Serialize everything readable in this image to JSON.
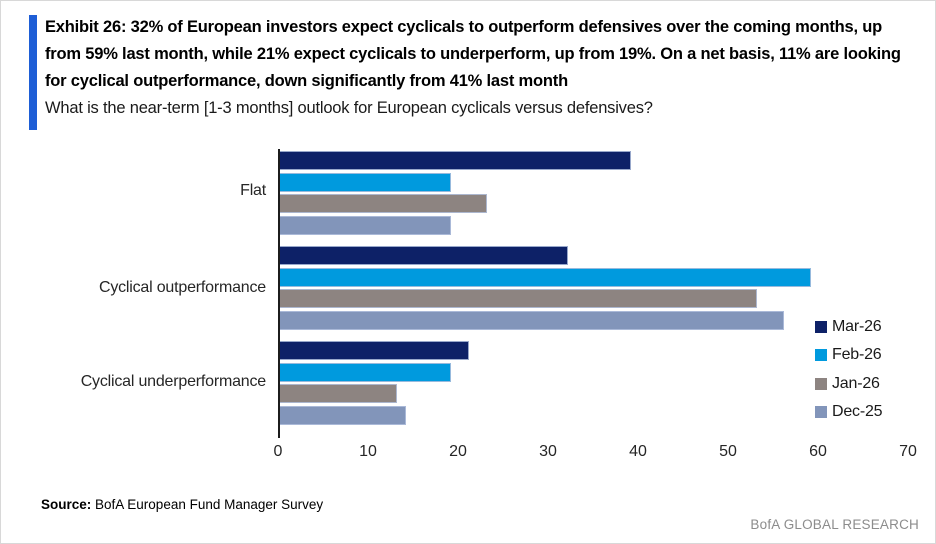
{
  "header": {
    "exhibit_title": "Exhibit 26: 32% of European investors expect cyclicals to outperform defensives over the coming months, up from 59% last month, while 21% expect cyclicals to underperform, up from 19%. On a net basis, 11% are looking for cyclical outperformance, down significantly from 41% last month",
    "question": "What is the near-term [1-3 months] outlook for European cyclicals versus defensives?"
  },
  "chart_data": {
    "type": "bar",
    "orientation": "horizontal",
    "title": "What is the near-term [1-3 months] outlook for European cyclicals versus defensives?",
    "categories": [
      "Flat",
      "Cyclical outperformance",
      "Cyclical underperformance"
    ],
    "series": [
      {
        "name": "Mar-26",
        "color": "#0d2167",
        "values": [
          39,
          32,
          21
        ]
      },
      {
        "name": "Feb-26",
        "color": "#009ade",
        "values": [
          19,
          59,
          19
        ]
      },
      {
        "name": "Jan-26",
        "color": "#8d8481",
        "values": [
          23,
          53,
          13
        ]
      },
      {
        "name": "Dec-25",
        "color": "#8295ba",
        "values": [
          19,
          56,
          14
        ]
      }
    ],
    "xlabel": "",
    "ylabel": "",
    "xlim": [
      0,
      70
    ],
    "xticks": [
      0,
      10,
      20,
      30,
      40,
      50,
      60,
      70
    ],
    "grid": false,
    "legend_position": "right"
  },
  "footer": {
    "source_label": "Source:",
    "source_text": " BofA European Fund Manager Survey",
    "brand": "BofA GLOBAL RESEARCH"
  },
  "colors": {
    "accent_bar": "#1e5ed6",
    "axis_line": "#1c1c1c",
    "brand_text": "#8c8c8c"
  }
}
